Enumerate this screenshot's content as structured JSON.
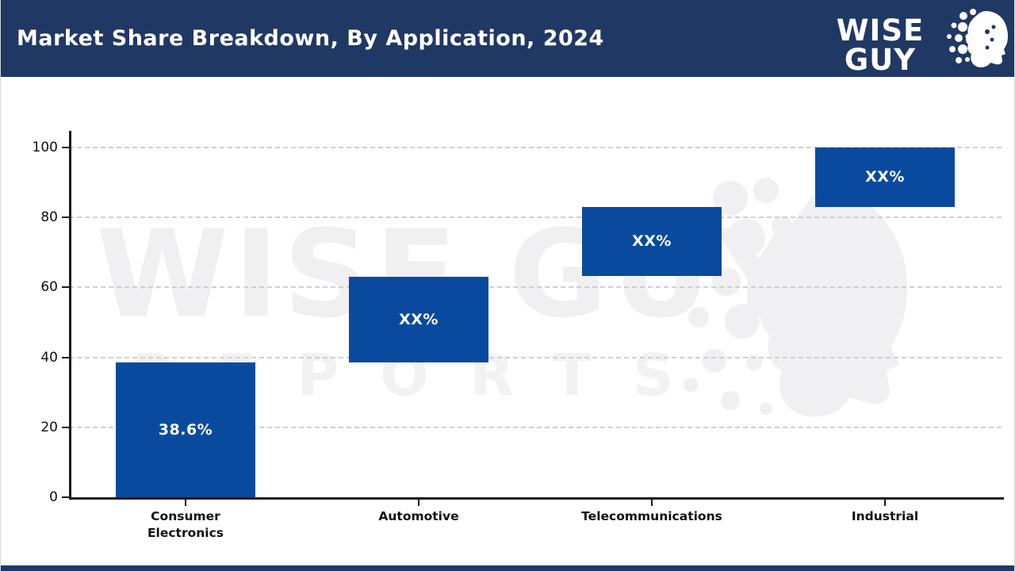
{
  "header": {
    "title": "Market Share Breakdown, By Application, 2024",
    "logo": {
      "line1": "WISE GUY",
      "line2": "R E P O R T S"
    }
  },
  "watermark": {
    "line1": "WISE GUY",
    "line2": "REPORTS"
  },
  "colors": {
    "header_bg": "#203864",
    "bar": "#0a4a9e",
    "grid": "#cfcfcf",
    "axis": "#1a1a1a",
    "watermark": "#f0f0f3",
    "footer_bg": "#203864"
  },
  "chart_data": {
    "type": "bar",
    "subtype": "floating-waterfall",
    "title": "Market Share Breakdown, By Application, 2024",
    "categories": [
      "Consumer\nElectronics",
      "Automotive",
      "Telecommunications",
      "Industrial"
    ],
    "bars": [
      {
        "category": "Consumer Electronics",
        "start": 0,
        "end": 38.6,
        "label": "38.6%"
      },
      {
        "category": "Automotive",
        "start": 38.6,
        "end": 63,
        "label": "XX%"
      },
      {
        "category": "Telecommunications",
        "start": 63.3,
        "end": 83,
        "label": "XX%"
      },
      {
        "category": "Industrial",
        "start": 83,
        "end": 100,
        "label": "XX%"
      }
    ],
    "xlabel": "",
    "ylabel": "",
    "ylim": [
      0,
      105
    ],
    "yticks": [
      0,
      20,
      40,
      60,
      80,
      100
    ],
    "grid": "horizontal-dashed",
    "legend": "none"
  }
}
